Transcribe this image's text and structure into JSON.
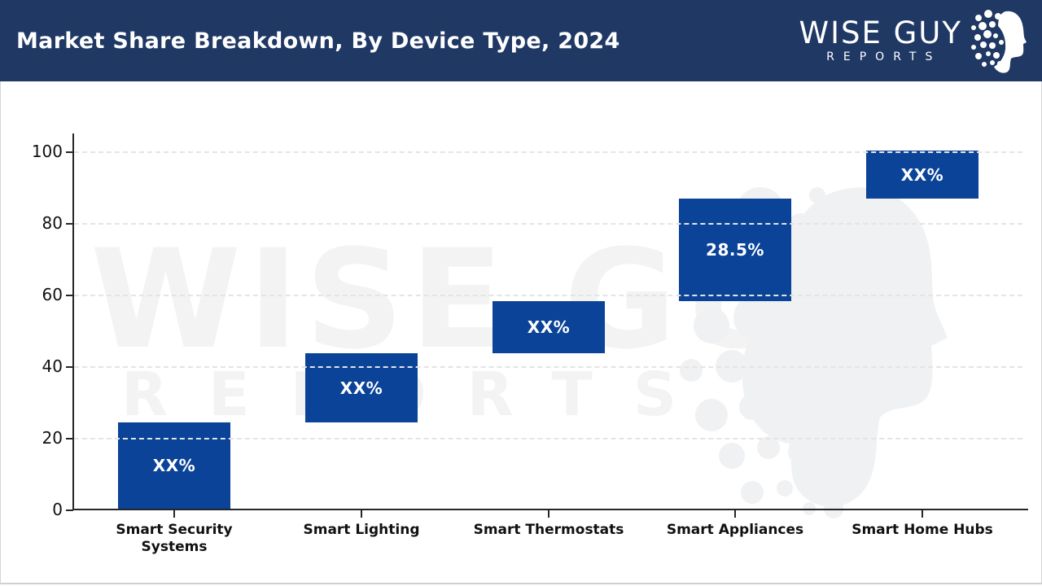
{
  "header": {
    "title": "Market Share Breakdown, By Device Type, 2024",
    "logo": {
      "line1": "WISE GUY",
      "line2": "REPORTS"
    }
  },
  "watermark": {
    "line1": "WISE GUY",
    "line2": "REPORTS"
  },
  "colors": {
    "header_bg": "#1f3864",
    "bar": "#0a4397",
    "axis": "#262626",
    "grid": "#e4e4e4",
    "bar_label_text": "#ffffff",
    "tick_text": "#111111",
    "watermark": "#f3f3f4"
  },
  "chart_data": {
    "type": "bar",
    "subtype": "waterfall",
    "title": "Market Share Breakdown, By Device Type, 2024",
    "categories": [
      "Smart Security Systems",
      "Smart Lighting",
      "Smart Thermostats",
      "Smart Appliances",
      "Smart Home Hubs"
    ],
    "bars": [
      {
        "category": "Smart Security Systems",
        "start": 0,
        "end": 24,
        "label": "XX%"
      },
      {
        "category": "Smart Lighting",
        "start": 24,
        "end": 43.5,
        "label": "XX%"
      },
      {
        "category": "Smart Thermostats",
        "start": 43.5,
        "end": 58,
        "label": "XX%"
      },
      {
        "category": "Smart Appliances",
        "start": 58,
        "end": 86.5,
        "label": "28.5%"
      },
      {
        "category": "Smart Home Hubs",
        "start": 86.5,
        "end": 100,
        "label": "XX%"
      }
    ],
    "xlabel": "",
    "ylabel": "",
    "ylim": [
      0,
      100
    ],
    "yticks": [
      0,
      20,
      40,
      60,
      80,
      100
    ],
    "grid": "horizontal-dashed-over-bars",
    "legend": "none"
  }
}
